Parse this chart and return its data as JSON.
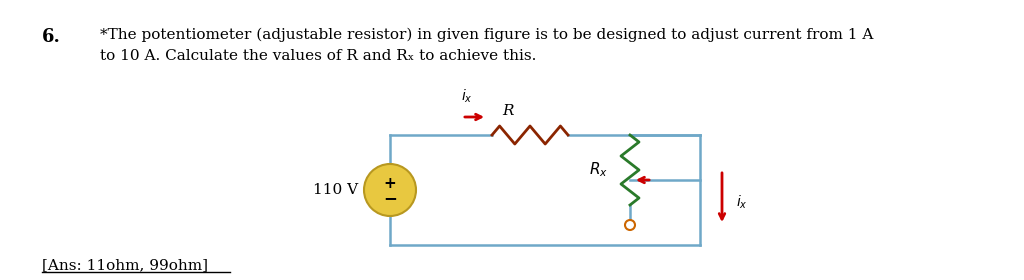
{
  "title_num": "6.",
  "title_text": "*The potentiometer (adjustable resistor) in given figure is to be designed to adjust current from 1 A\nto 10 A. Calculate the values of R and Rₓ to achieve this.",
  "ans_text": "[Ans: 11ohm, 99ohm]",
  "bg_color": "#ffffff",
  "wire_color": "#6fa8c8",
  "resistor_R_color": "#8B2500",
  "resistor_Rx_color": "#2a7a2a",
  "arrow_color": "#cc0000",
  "source_color": "#e8c840",
  "source_edge_color": "#b89820"
}
